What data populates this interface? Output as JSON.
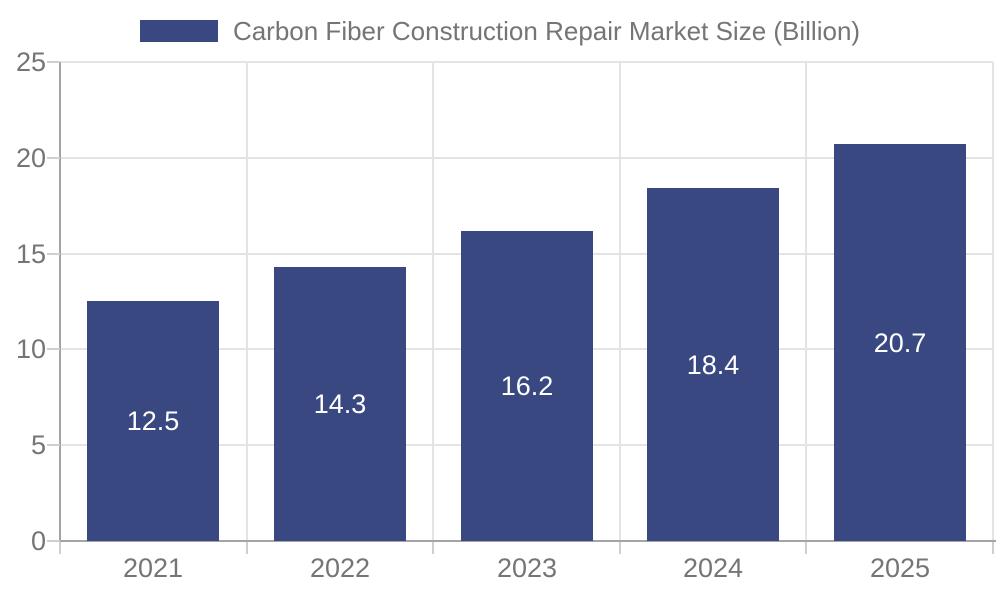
{
  "chart_data": {
    "type": "bar",
    "title": "Carbon Fiber Construction Repair Market Size (Billion)",
    "categories": [
      "2021",
      "2022",
      "2023",
      "2024",
      "2025"
    ],
    "values": [
      12.5,
      14.3,
      16.2,
      18.4,
      20.7
    ],
    "value_labels": [
      "12.5",
      "14.3",
      "16.2",
      "18.4",
      "20.7"
    ],
    "xlabel": "",
    "ylabel": "",
    "ylim": [
      0,
      25
    ],
    "yticks": [
      0,
      5,
      10,
      15,
      20,
      25
    ],
    "grid": true,
    "legend_position": "top-center",
    "colors": {
      "bar": "#394880",
      "value_label": "#ffffff",
      "title_text": "#757575",
      "tick_label": "#757575",
      "gridline": "#e4e4e8",
      "axis_line": "#a3a3a8",
      "tick_mark": "#cfcfd3",
      "background": "#ffffff"
    }
  }
}
